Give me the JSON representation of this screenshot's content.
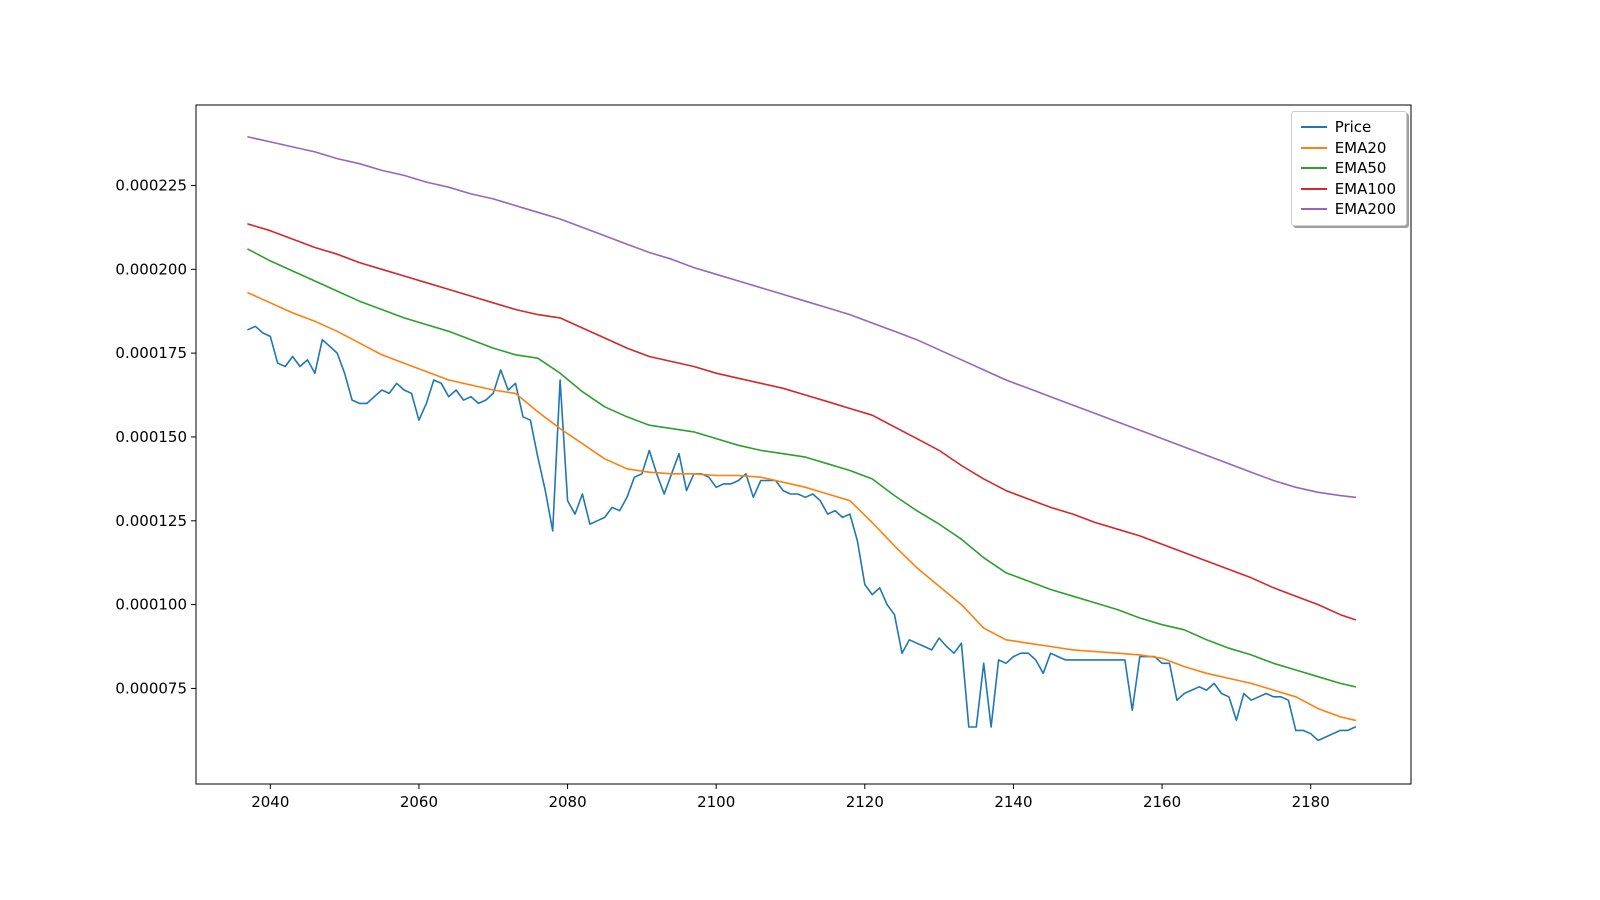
{
  "figure": {
    "background": "#ffffff",
    "axes_edge_color": "#000000",
    "text_color": "#000000"
  },
  "chart_data": {
    "type": "line",
    "title": "",
    "xlabel": "",
    "ylabel": "",
    "grid": false,
    "legend": {
      "position": "upper right"
    },
    "xlim": [
      2030,
      2193.5
    ],
    "y_unit": "1e-6",
    "ylim": [
      46.5,
      249
    ],
    "x_ticks": [
      {
        "value": 2040,
        "label": "2040"
      },
      {
        "value": 2060,
        "label": "2060"
      },
      {
        "value": 2080,
        "label": "2080"
      },
      {
        "value": 2100,
        "label": "2100"
      },
      {
        "value": 2120,
        "label": "2120"
      },
      {
        "value": 2140,
        "label": "2140"
      },
      {
        "value": 2160,
        "label": "2160"
      },
      {
        "value": 2180,
        "label": "2180"
      }
    ],
    "y_ticks": [
      {
        "value": 75,
        "label": "0.000075"
      },
      {
        "value": 100,
        "label": "0.000100"
      },
      {
        "value": 125,
        "label": "0.000125"
      },
      {
        "value": 150,
        "label": "0.000150"
      },
      {
        "value": 175,
        "label": "0.000175"
      },
      {
        "value": 200,
        "label": "0.000200"
      },
      {
        "value": 225,
        "label": "0.000225"
      }
    ],
    "x_ema": [
      2037,
      2040,
      2043,
      2046,
      2049,
      2052,
      2055,
      2058,
      2061,
      2064,
      2067,
      2070,
      2073,
      2076,
      2079,
      2082,
      2085,
      2088,
      2091,
      2094,
      2097,
      2100,
      2103,
      2106,
      2109,
      2112,
      2115,
      2118,
      2121,
      2124,
      2127,
      2130,
      2133,
      2136,
      2139,
      2142,
      2145,
      2148,
      2151,
      2154,
      2157,
      2160,
      2163,
      2166,
      2169,
      2172,
      2175,
      2178,
      2181,
      2184,
      2186
    ],
    "series": [
      {
        "name": "Price",
        "color": "#1f77b4",
        "x_start": 2037,
        "x_step": 1,
        "y": [
          182,
          183,
          181,
          180,
          172,
          171,
          174,
          171,
          173,
          169,
          179,
          177,
          175,
          169,
          161,
          160,
          160,
          162,
          164,
          163,
          166,
          164,
          163,
          155,
          160,
          167,
          166,
          162,
          164,
          161,
          162,
          160,
          161,
          163,
          170,
          164,
          166,
          156,
          155,
          144,
          134,
          122,
          167,
          131,
          127,
          133,
          124,
          125,
          126,
          129,
          128,
          132,
          138,
          139,
          146,
          139,
          133,
          139,
          145,
          134,
          139,
          139,
          138,
          135,
          136,
          136,
          137,
          139,
          132,
          137,
          137,
          137,
          134,
          133,
          133,
          132,
          133,
          131,
          127,
          128,
          126,
          127,
          119,
          106,
          103,
          105,
          100,
          97,
          85.5,
          89.5,
          88.5,
          87.5,
          86.5,
          90,
          87.5,
          85.5,
          88.5,
          63.5,
          63.5,
          82.5,
          63.5,
          83.5,
          82.5,
          84.5,
          85.5,
          85.5,
          83.5,
          79.5,
          85.5,
          84.5,
          83.5,
          83.5,
          83.5,
          83.5,
          83.5,
          83.5,
          83.5,
          83.5,
          83.5,
          68.5,
          84.5,
          84.5,
          84.5,
          82.5,
          82.5,
          71.5,
          73.5,
          74.5,
          75.5,
          74.5,
          76.5,
          73.5,
          72.5,
          65.5,
          73.5,
          71.5,
          72.5,
          73.5,
          72.5,
          72.5,
          71.5,
          62.5,
          62.5,
          61.5,
          59.5,
          60.5,
          61.5,
          62.5,
          62.5,
          63.5
        ]
      },
      {
        "name": "EMA20",
        "color": "#ff7f0e",
        "x_key": "x_ema",
        "y": [
          193,
          190,
          187,
          184.5,
          181.5,
          178,
          174.5,
          172,
          169.5,
          167,
          165.5,
          164,
          163,
          157.5,
          152.5,
          148,
          143.5,
          140.5,
          139.5,
          139,
          139,
          138.5,
          138.5,
          138,
          136.5,
          135,
          133,
          131,
          124.5,
          117.5,
          111,
          105.5,
          100,
          93,
          89.5,
          88.5,
          87.5,
          86.5,
          86,
          85.5,
          85,
          84,
          81.5,
          79.5,
          78,
          76.5,
          74.5,
          72.5,
          69,
          66.5,
          65.5
        ]
      },
      {
        "name": "EMA50",
        "color": "#2ca02c",
        "x_key": "x_ema",
        "y": [
          206,
          202.5,
          199.5,
          196.5,
          193.5,
          190.5,
          188,
          185.5,
          183.5,
          181.5,
          179,
          176.5,
          174.5,
          173.5,
          169,
          163.5,
          159,
          156,
          153.5,
          152.5,
          151.5,
          149.5,
          147.5,
          146,
          145,
          144,
          142,
          140,
          137.5,
          132.5,
          128,
          124,
          119.5,
          114,
          109.5,
          107,
          104.5,
          102.5,
          100.5,
          98.5,
          96,
          94,
          92.5,
          89.5,
          87,
          85,
          82.5,
          80.5,
          78.5,
          76.5,
          75.5
        ]
      },
      {
        "name": "EMA100",
        "color": "#d62728",
        "x_key": "x_ema",
        "y": [
          213.5,
          211.5,
          209,
          206.5,
          204.5,
          202,
          200,
          198,
          196,
          194,
          192,
          190,
          188,
          186.5,
          185.5,
          182.5,
          179.5,
          176.5,
          174,
          172.5,
          171,
          169,
          167.5,
          166,
          164.5,
          162.5,
          160.5,
          158.5,
          156.5,
          153,
          149.5,
          146,
          141.5,
          137.5,
          134,
          131.5,
          129,
          127,
          124.5,
          122.5,
          120.5,
          118,
          115.5,
          113,
          110.5,
          108,
          105,
          102.5,
          100,
          97,
          95.5
        ]
      },
      {
        "name": "EMA200",
        "color": "#9467bd",
        "x_key": "x_ema",
        "y": [
          239.5,
          238,
          236.5,
          235,
          233,
          231.5,
          229.5,
          228,
          226,
          224.5,
          222.5,
          221,
          219,
          217,
          215,
          212.5,
          210,
          207.5,
          205,
          203,
          200.5,
          198.5,
          196.5,
          194.5,
          192.5,
          190.5,
          188.5,
          186.5,
          184,
          181.5,
          179,
          176,
          173,
          170,
          167,
          164.5,
          162,
          159.5,
          157,
          154.5,
          152,
          149.5,
          147,
          144.5,
          142,
          139.5,
          137,
          135,
          133.5,
          132.5,
          132
        ]
      }
    ]
  }
}
